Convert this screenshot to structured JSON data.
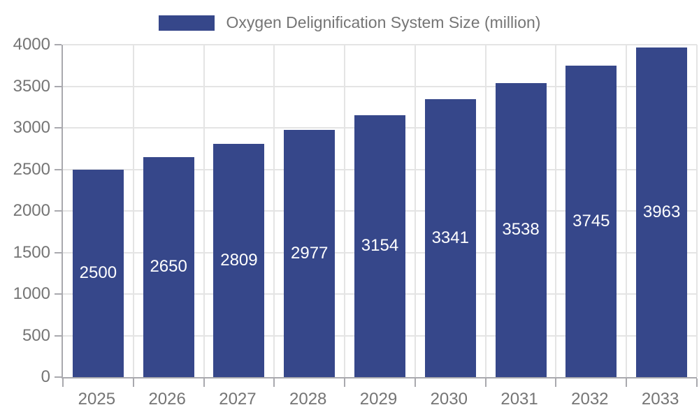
{
  "chart_data": {
    "type": "bar",
    "title": "",
    "legend": "Oxygen Delignification System Size (million)",
    "legend_position": "top-center",
    "categories": [
      "2025",
      "2026",
      "2027",
      "2028",
      "2029",
      "2030",
      "2031",
      "2032",
      "2033"
    ],
    "series": [
      {
        "name": "Oxygen Delignification System Size (million)",
        "values": [
          2500,
          2650,
          2809,
          2977,
          3154,
          3341,
          3538,
          3745,
          3963
        ]
      }
    ],
    "value_labels_shown": true,
    "xlabel": "",
    "ylabel": "",
    "ylim": [
      0,
      4000
    ],
    "yticks": [
      0,
      500,
      1000,
      1500,
      2000,
      2500,
      3000,
      3500,
      4000
    ],
    "grid": true,
    "colors": {
      "bar": "#36478a",
      "grid": "#e4e4e4",
      "axis": "#a9a9ae",
      "tick_text": "#757575",
      "value_label_text": "#ffffff",
      "background": "#ffffff"
    }
  }
}
